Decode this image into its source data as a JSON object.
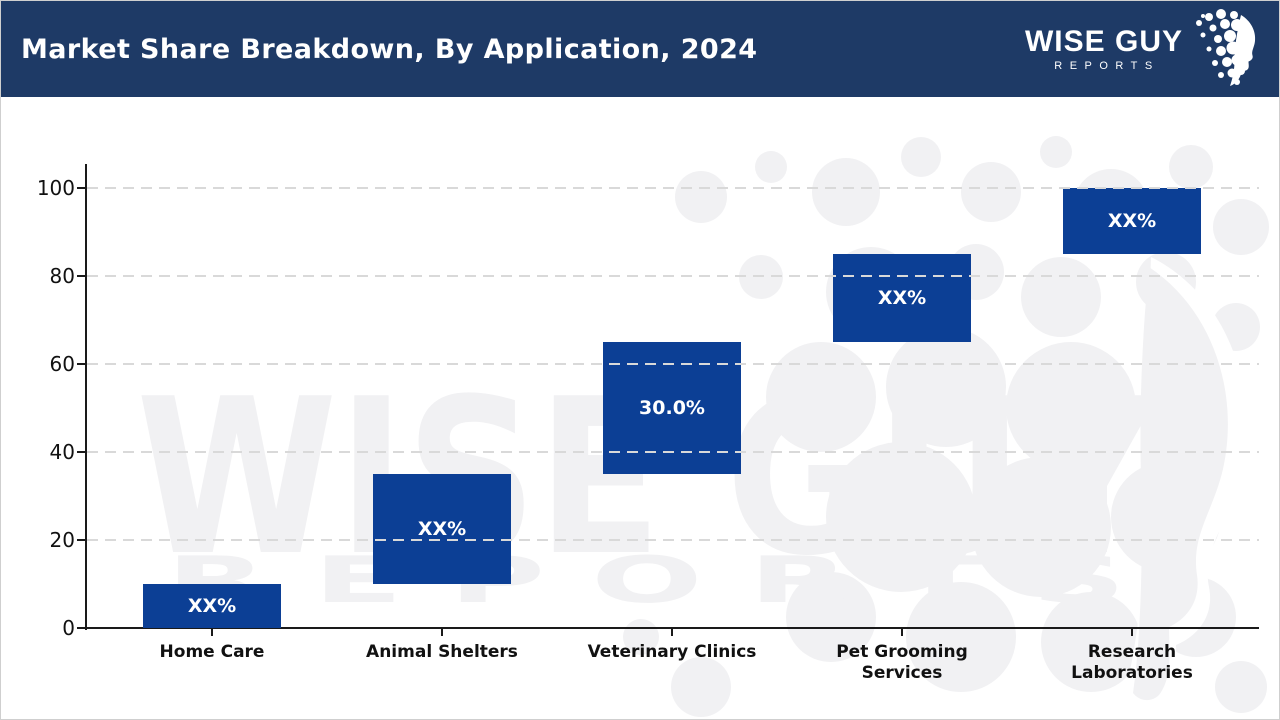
{
  "header": {
    "title": "Market Share Breakdown, By Application, 2024",
    "logo": {
      "line1": "WISE GUY",
      "line2": "REPORTS"
    }
  },
  "watermark": {
    "line1": "WISE GUY",
    "line2": "R E P O R T S"
  },
  "chart_data": {
    "type": "bar",
    "variant": "floating-segment-waterfall",
    "title": "Market Share Breakdown, By Application, 2024",
    "categories": [
      "Home Care",
      "Animal Shelters",
      "Veterinary Clinics",
      "Pet Grooming Services",
      "Research Laboratories"
    ],
    "category_label_lines": [
      [
        "Home Care"
      ],
      [
        "Animal Shelters"
      ],
      [
        "Veterinary Clinics"
      ],
      [
        "Pet Grooming",
        "Services"
      ],
      [
        "Research",
        "Laboratories"
      ]
    ],
    "segments": [
      {
        "category": "Home Care",
        "start": 0,
        "end": 10,
        "label": "XX%"
      },
      {
        "category": "Animal Shelters",
        "start": 10,
        "end": 35,
        "label": "XX%"
      },
      {
        "category": "Veterinary Clinics",
        "start": 35,
        "end": 65,
        "label": "30.0%"
      },
      {
        "category": "Pet Grooming Services",
        "start": 65,
        "end": 85,
        "label": "XX%"
      },
      {
        "category": "Research Laboratories",
        "start": 85,
        "end": 100,
        "label": "XX%"
      }
    ],
    "ylabel": "",
    "xlabel": "",
    "yticks": [
      0,
      20,
      40,
      60,
      80,
      100
    ],
    "ylim": [
      0,
      105
    ],
    "grid": "horizontal-dashed",
    "legend": "none",
    "colors": {
      "bar": "#0c3f95",
      "grid": "#d9d9d9",
      "axis": "#1a1a1a",
      "bar_label": "#ffffff",
      "header_bg": "#1e3a66",
      "watermark": "#f1f1f3"
    }
  }
}
